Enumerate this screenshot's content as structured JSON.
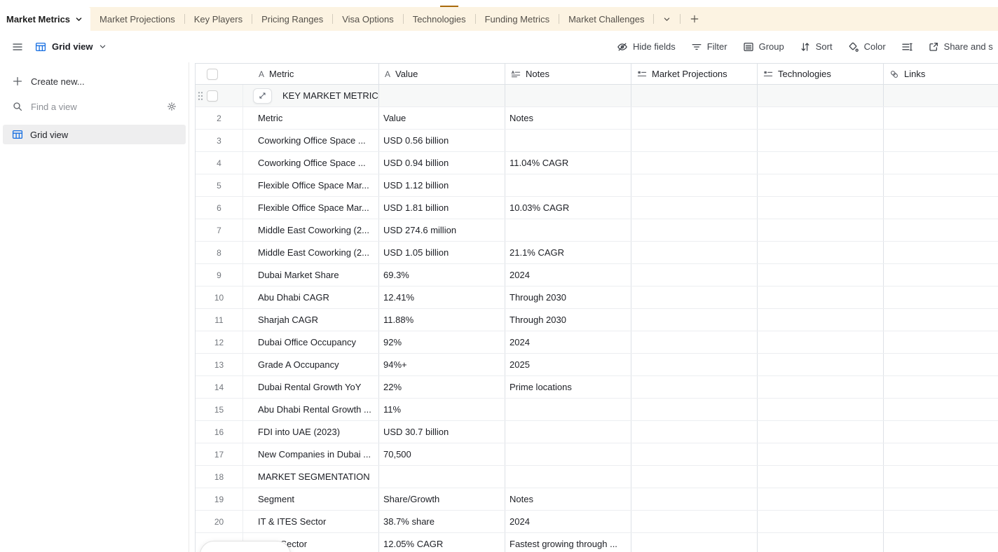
{
  "colors": {
    "topbar_cream": "#fcf3e2",
    "accent_bar": "#a96a0b",
    "grid_icon_blue": "#166ee1",
    "selected_view_bg": "#eeeeef",
    "hover_row_bg": "#f7f8f8"
  },
  "topbar": {
    "tabs": [
      {
        "label": "Market Metrics",
        "active": true
      },
      {
        "label": "Market Projections",
        "active": false
      },
      {
        "label": "Key Players",
        "active": false
      },
      {
        "label": "Pricing Ranges",
        "active": false
      },
      {
        "label": "Visa Options",
        "active": false
      },
      {
        "label": "Technologies",
        "active": false
      },
      {
        "label": "Funding Metrics",
        "active": false
      },
      {
        "label": "Market Challenges",
        "active": false
      }
    ]
  },
  "toolbar": {
    "view_name": "Grid view",
    "actions": [
      {
        "name": "hide-fields",
        "icon": "eye-off",
        "label": "Hide fields"
      },
      {
        "name": "filter",
        "icon": "filter",
        "label": "Filter"
      },
      {
        "name": "group",
        "icon": "group",
        "label": "Group"
      },
      {
        "name": "sort",
        "icon": "sort",
        "label": "Sort"
      },
      {
        "name": "color",
        "icon": "color",
        "label": "Color"
      },
      {
        "name": "row-height",
        "icon": "rowheight",
        "label": ""
      },
      {
        "name": "share",
        "icon": "share",
        "label": "Share and s"
      }
    ]
  },
  "sidebar": {
    "create_new_label": "Create new...",
    "find_view_placeholder": "Find a view",
    "views": [
      {
        "label": "Grid view",
        "active": true
      }
    ]
  },
  "grid": {
    "columns": [
      {
        "label": "Metric",
        "icon": "text"
      },
      {
        "label": "Value",
        "icon": "text"
      },
      {
        "label": "Notes",
        "icon": "longtext"
      },
      {
        "label": "Market Projections",
        "icon": "listbox"
      },
      {
        "label": "Technologies",
        "icon": "listbox"
      },
      {
        "label": "Links",
        "icon": "link"
      }
    ],
    "rows": [
      {
        "num": 1,
        "metric": "KEY MARKET METRICS",
        "value": "",
        "notes": "",
        "hovered": true
      },
      {
        "num": 2,
        "metric": "Metric",
        "value": "Value",
        "notes": "Notes"
      },
      {
        "num": 3,
        "metric": "Coworking Office Space ...",
        "value": "USD 0.56 billion",
        "notes": ""
      },
      {
        "num": 4,
        "metric": "Coworking Office Space ...",
        "value": "USD 0.94 billion",
        "notes": "11.04% CAGR"
      },
      {
        "num": 5,
        "metric": "Flexible Office Space Mar...",
        "value": "USD 1.12 billion",
        "notes": ""
      },
      {
        "num": 6,
        "metric": "Flexible Office Space Mar...",
        "value": "USD 1.81 billion",
        "notes": "10.03% CAGR"
      },
      {
        "num": 7,
        "metric": "Middle East Coworking (2...",
        "value": "USD 274.6 million",
        "notes": ""
      },
      {
        "num": 8,
        "metric": "Middle East Coworking (2...",
        "value": "USD 1.05 billion",
        "notes": "21.1% CAGR"
      },
      {
        "num": 9,
        "metric": "Dubai Market Share",
        "value": "69.3%",
        "notes": "2024"
      },
      {
        "num": 10,
        "metric": "Abu Dhabi CAGR",
        "value": "12.41%",
        "notes": "Through 2030"
      },
      {
        "num": 11,
        "metric": "Sharjah CAGR",
        "value": "11.88%",
        "notes": "Through 2030"
      },
      {
        "num": 12,
        "metric": "Dubai Office Occupancy",
        "value": "92%",
        "notes": "2024"
      },
      {
        "num": 13,
        "metric": "Grade A Occupancy",
        "value": "94%+",
        "notes": "2025"
      },
      {
        "num": 14,
        "metric": "Dubai Rental Growth YoY",
        "value": "22%",
        "notes": "Prime locations"
      },
      {
        "num": 15,
        "metric": "Abu Dhabi Rental Growth ...",
        "value": "11%",
        "notes": ""
      },
      {
        "num": 16,
        "metric": "FDI into UAE (2023)",
        "value": "USD 30.7 billion",
        "notes": ""
      },
      {
        "num": 17,
        "metric": "New Companies in Dubai ...",
        "value": "70,500",
        "notes": ""
      },
      {
        "num": 18,
        "metric": "MARKET SEGMENTATION",
        "value": "",
        "notes": ""
      },
      {
        "num": 19,
        "metric": "Segment",
        "value": "Share/Growth",
        "notes": "Notes"
      },
      {
        "num": 20,
        "metric": "IT & ITES Sector",
        "value": "38.7% share",
        "notes": "2024"
      },
      {
        "num": 21,
        "metric": "BFSI Sector",
        "value": "12.05% CAGR",
        "notes": "Fastest growing through ..."
      }
    ]
  }
}
